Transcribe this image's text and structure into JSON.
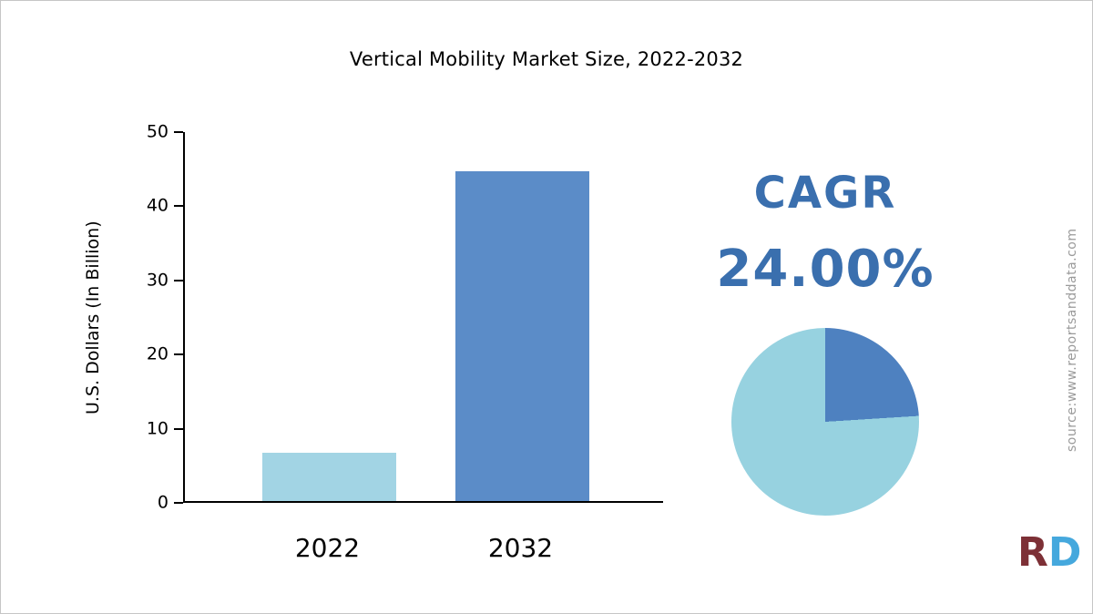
{
  "title": "Vertical Mobility Market Size, 2022-2032",
  "source": "source:www.reportsanddata.com",
  "logo": {
    "r": "R",
    "d": "D"
  },
  "cagr": {
    "label": "CAGR",
    "value": "24.00%",
    "color": "#3a6fae"
  },
  "colors": {
    "bar_2022": "#a2d4e4",
    "bar_2032": "#5b8cc8",
    "pie_highlight": "#4e81c0",
    "pie_remainder": "#97d2e0",
    "accent_text": "#3a6fae",
    "source_text": "#9a9a9a"
  },
  "chart_data": [
    {
      "type": "bar",
      "title": "Vertical Mobility Market Size, 2022-2032",
      "categories": [
        "2022",
        "2032"
      ],
      "values": [
        6.5,
        44.7
      ],
      "xlabel": "",
      "ylabel": "U.S. Dollars (In Billion)",
      "ylim": [
        0,
        50
      ],
      "yticks": [
        0,
        10,
        20,
        30,
        40,
        50
      ],
      "bar_colors": [
        "#a2d4e4",
        "#5b8cc8"
      ],
      "grid": false,
      "legend": "none"
    },
    {
      "type": "pie",
      "title": "CAGR 24.00%",
      "slices": [
        {
          "label": "CAGR highlight",
          "value": 24,
          "color": "#4e81c0"
        },
        {
          "label": "remainder",
          "value": 76,
          "color": "#97d2e0"
        }
      ],
      "start_angle_deg": 0,
      "direction": "clockwise",
      "legend": "none"
    }
  ]
}
